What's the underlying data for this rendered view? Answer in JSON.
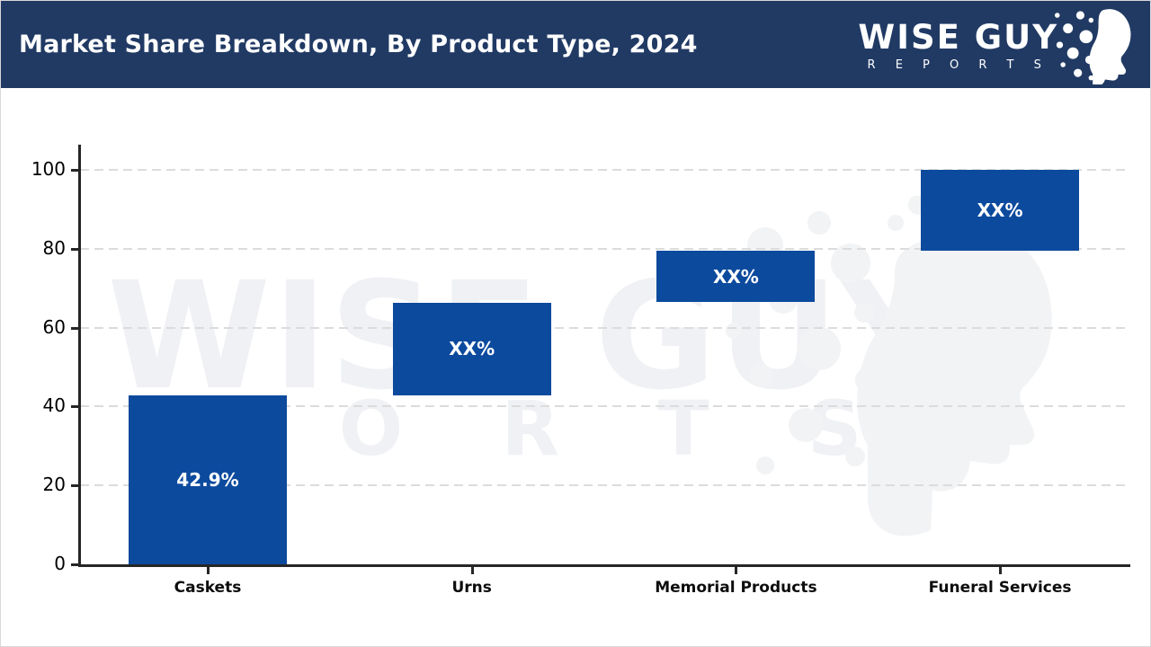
{
  "header": {
    "title": "Market Share Breakdown, By Product Type, 2024",
    "background_color": "#213a64",
    "brand": {
      "line1": "WISE GUY",
      "line2": "R E P O R T S"
    }
  },
  "watermark": {
    "line1": "WISE GUY",
    "line2": "P O R T S"
  },
  "chart_data": {
    "type": "bar",
    "subtype": "waterfall",
    "title": "Market Share Breakdown, By Product Type, 2024",
    "xlabel": "",
    "ylabel": "",
    "ylim": [
      0,
      100
    ],
    "yticks": [
      0,
      20,
      40,
      60,
      80,
      100
    ],
    "grid": "horizontal dashed",
    "legend": "none",
    "bar_color": "#0c4a9e",
    "bar_label_color": "#ffffff",
    "categories": [
      "Caskets",
      "Urns",
      "Memorial Products",
      "Funeral Services"
    ],
    "segments": [
      {
        "category": "Caskets",
        "start": 0,
        "end": 42.9,
        "label": "42.9%"
      },
      {
        "category": "Urns",
        "start": 42.9,
        "end": 66.4,
        "label": "XX%"
      },
      {
        "category": "Memorial Products",
        "start": 66.4,
        "end": 79.5,
        "label": "XX%"
      },
      {
        "category": "Funeral Services",
        "start": 79.5,
        "end": 100,
        "label": "XX%"
      }
    ]
  }
}
